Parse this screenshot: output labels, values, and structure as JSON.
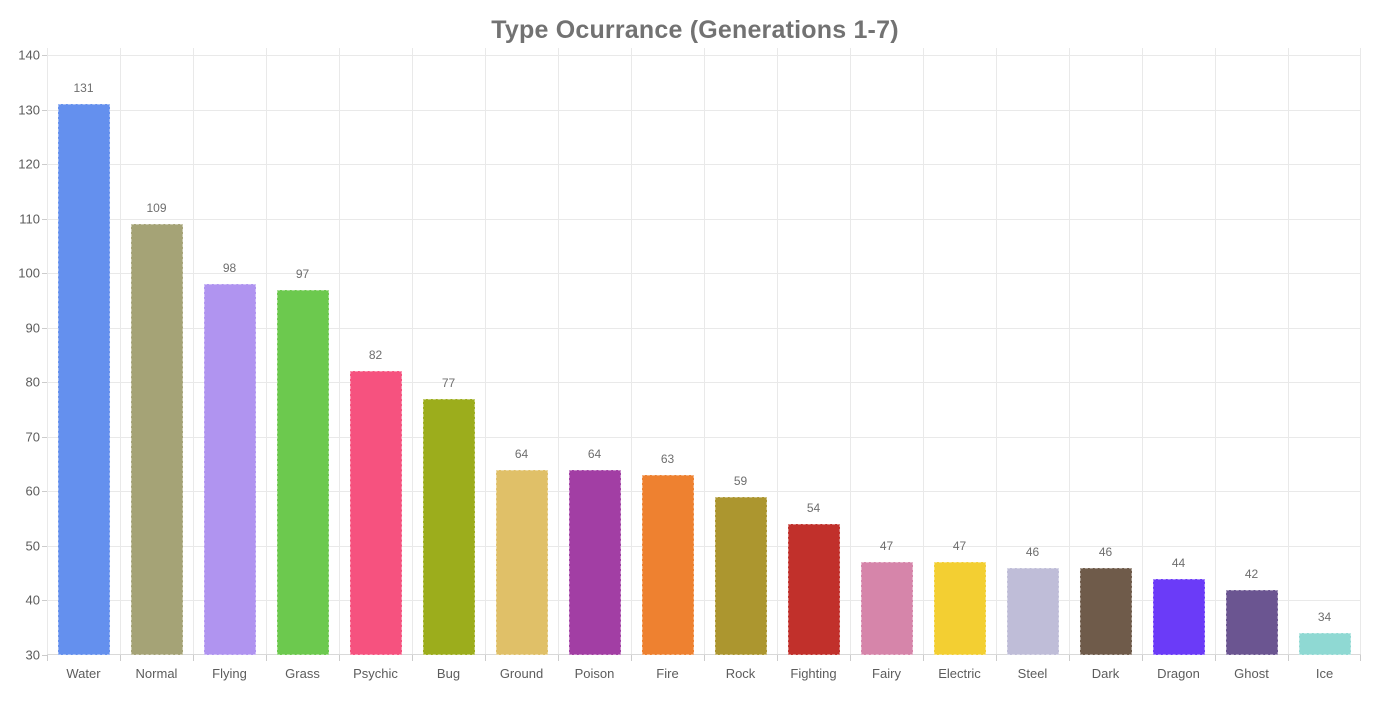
{
  "page": {
    "background": "#ffffff"
  },
  "chart_data": {
    "type": "bar",
    "title": "Type Ocurrance (Generations 1-7)",
    "title_color": "#727272",
    "xlabel": "",
    "ylabel": "",
    "categories": [
      "Water",
      "Normal",
      "Flying",
      "Grass",
      "Psychic",
      "Bug",
      "Ground",
      "Poison",
      "Fire",
      "Rock",
      "Fighting",
      "Fairy",
      "Electric",
      "Steel",
      "Dark",
      "Dragon",
      "Ghost",
      "Ice"
    ],
    "values": [
      131,
      109,
      98,
      97,
      82,
      77,
      64,
      64,
      63,
      59,
      54,
      47,
      47,
      46,
      46,
      44,
      42,
      34
    ],
    "bar_colors": [
      "#6490EE",
      "#A5A376",
      "#B094F0",
      "#6CC94E",
      "#F6527F",
      "#9CAD1C",
      "#E0C068",
      "#A23EA4",
      "#EE8130",
      "#AC962F",
      "#C1302B",
      "#D685AA",
      "#F3CF32",
      "#BFBDD8",
      "#6F5B4A",
      "#6B3BF8",
      "#6B5591",
      "#8FD9D3"
    ],
    "ylim": [
      30,
      140
    ],
    "ytick_step": 10,
    "ytick_labels": [
      140,
      130,
      120,
      110,
      100,
      90,
      80,
      70,
      60,
      50,
      40,
      30
    ],
    "grid": true,
    "legend": false,
    "value_labels": true,
    "grid_color": "#e9e9e9",
    "axis_color": "#d9d9d9",
    "tick_color": "#cccccc",
    "tick_label_color": "#5c5c5c",
    "value_label_color": "#6e6e6e"
  }
}
